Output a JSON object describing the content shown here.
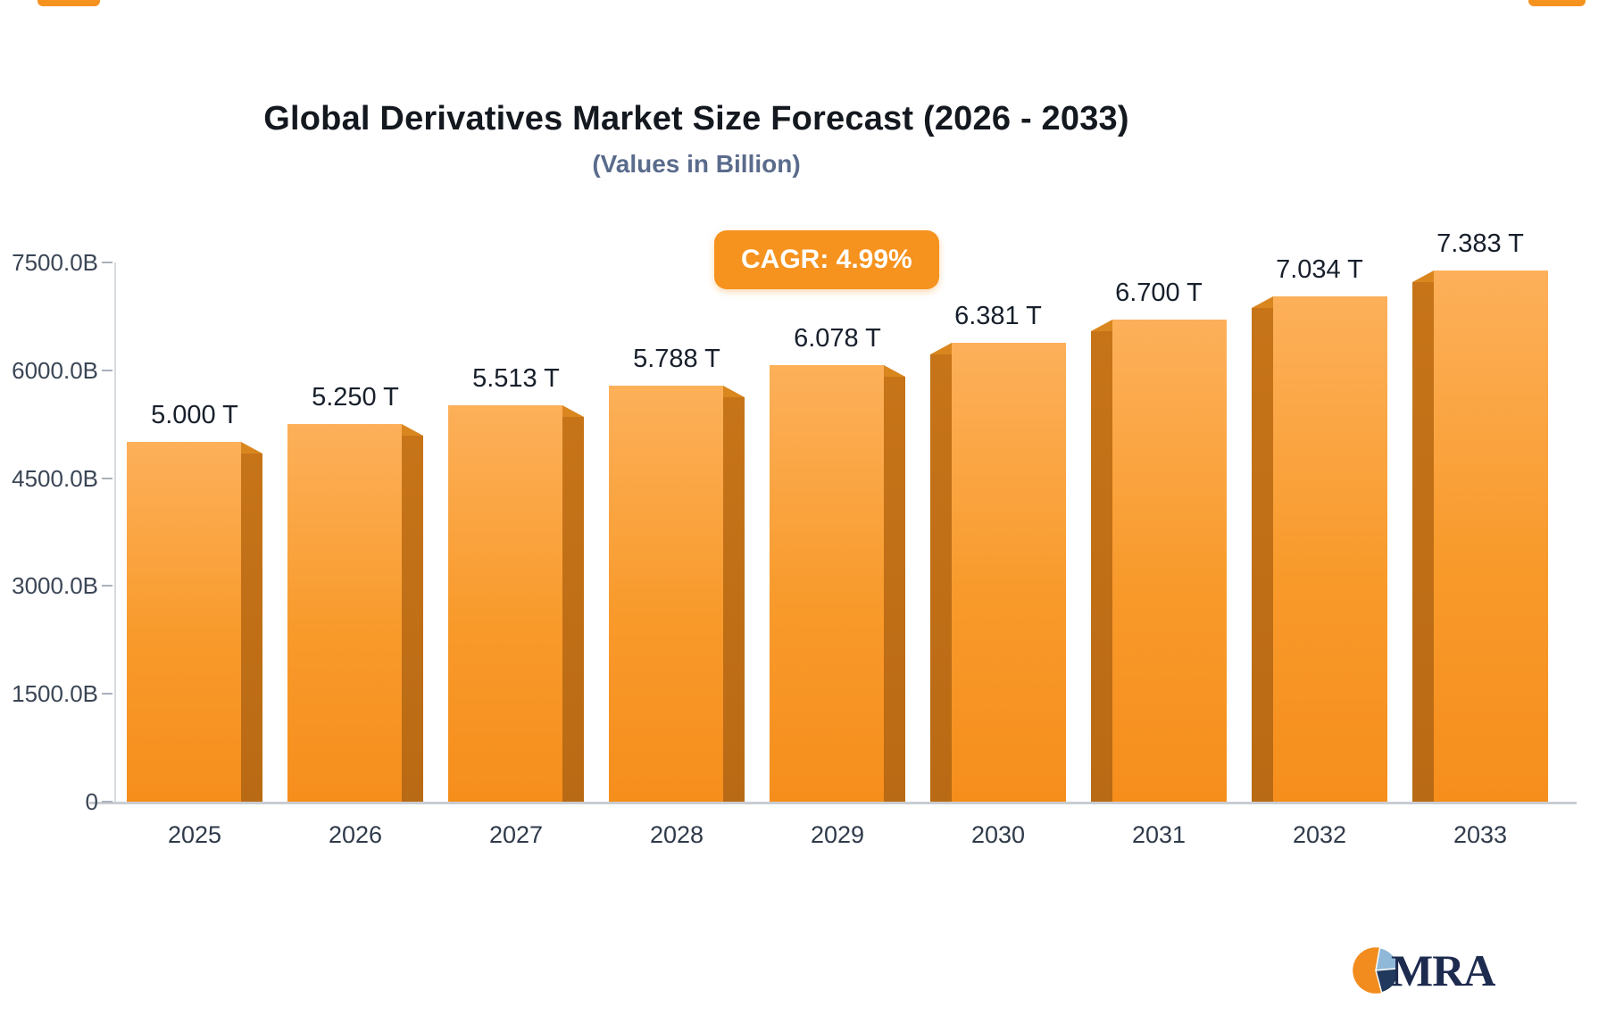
{
  "title": "Global Derivatives Market Size Forecast (2026 - 2033)",
  "subtitle": "(Values in Billion)",
  "badge": {
    "label": "CAGR: 4.99%",
    "bg": "#F6921E",
    "text_color": "#FFFFFF"
  },
  "chart_data": {
    "type": "bar",
    "title": "Global Derivatives Market Size Forecast (2026 - 2033)",
    "subtitle": "(Values in Billion)",
    "categories": [
      "2025",
      "2026",
      "2027",
      "2028",
      "2029",
      "2030",
      "2031",
      "2032",
      "2033"
    ],
    "values": [
      5000,
      5250,
      5513,
      5788,
      6078,
      6381,
      6700,
      7034,
      7383
    ],
    "bar_labels": [
      "5.000 T",
      "5.250 T",
      "5.513 T",
      "5.788 T",
      "6.078 T",
      "6.381 T",
      "6.700 T",
      "7.034 T",
      "7.383 T"
    ],
    "unit": "Billion USD",
    "cagr": "4.99%",
    "xlabel": "",
    "ylabel": "",
    "ylim": [
      0,
      7500
    ],
    "ytick_values": [
      7500,
      6000,
      4500,
      3000,
      1500,
      0
    ],
    "ytick_labels": [
      "7500.0B",
      "6000.0B",
      "4500.0B",
      "3000.0B",
      "1500.0B",
      "0"
    ],
    "grid": false,
    "legend": null,
    "bar_color_top": "#FDB05A",
    "bar_color_bottom": "#F68E1C",
    "bar_side_color": "#BE6E16"
  },
  "logo": {
    "text": "MRA",
    "icon": "pie-chart-icon",
    "colors": {
      "orange": "#F28C1E",
      "navy": "#20395C",
      "light_blue": "#8FB8D8",
      "text": "#1D2B4F"
    }
  }
}
